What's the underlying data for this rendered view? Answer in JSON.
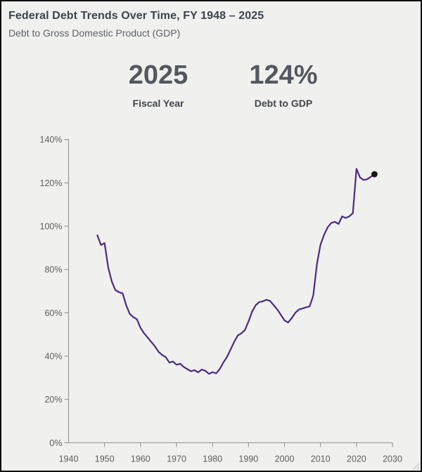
{
  "header": {
    "title": "Federal Debt Trends Over Time, FY 1948 – 2025",
    "subtitle": "Debt to Gross Domestic Product (GDP)"
  },
  "stats": [
    {
      "value": "2025",
      "label": "Fiscal Year"
    },
    {
      "value": "124%",
      "label": "Debt to GDP"
    }
  ],
  "chart_data": {
    "type": "line",
    "title": "Federal Debt Trends Over Time, FY 1948 – 2025",
    "subtitle": "Debt to Gross Domestic Product (GDP)",
    "xlabel": "",
    "ylabel": "",
    "xlim": [
      1940,
      2030
    ],
    "ylim": [
      0,
      140
    ],
    "grid": false,
    "legend_position": "none",
    "x_ticks": [
      1940,
      1950,
      1960,
      1970,
      1980,
      1990,
      2000,
      2010,
      2020,
      2030
    ],
    "y_ticks": [
      0,
      20,
      40,
      60,
      80,
      100,
      120,
      140
    ],
    "y_tick_suffix": "%",
    "series": [
      {
        "name": "Debt to GDP",
        "points": [
          [
            1948,
            95.8
          ],
          [
            1949,
            91.3
          ],
          [
            1950,
            92.2
          ],
          [
            1951,
            81.0
          ],
          [
            1952,
            74.5
          ],
          [
            1953,
            70.5
          ],
          [
            1954,
            69.5
          ],
          [
            1955,
            69.0
          ],
          [
            1956,
            63.5
          ],
          [
            1957,
            59.5
          ],
          [
            1958,
            58.0
          ],
          [
            1959,
            57.0
          ],
          [
            1960,
            53.0
          ],
          [
            1961,
            50.5
          ],
          [
            1962,
            48.5
          ],
          [
            1963,
            46.5
          ],
          [
            1964,
            44.5
          ],
          [
            1965,
            42.0
          ],
          [
            1966,
            40.5
          ],
          [
            1967,
            39.5
          ],
          [
            1968,
            37.0
          ],
          [
            1969,
            37.5
          ],
          [
            1970,
            36.0
          ],
          [
            1971,
            36.5
          ],
          [
            1972,
            35.0
          ],
          [
            1973,
            34.0
          ],
          [
            1974,
            33.0
          ],
          [
            1975,
            33.5
          ],
          [
            1976,
            32.5
          ],
          [
            1977,
            33.8
          ],
          [
            1978,
            33.2
          ],
          [
            1979,
            31.8
          ],
          [
            1980,
            32.6
          ],
          [
            1981,
            32.0
          ],
          [
            1982,
            34.0
          ],
          [
            1983,
            37.0
          ],
          [
            1984,
            39.5
          ],
          [
            1985,
            43.0
          ],
          [
            1986,
            46.5
          ],
          [
            1987,
            49.5
          ],
          [
            1988,
            50.5
          ],
          [
            1989,
            52.0
          ],
          [
            1990,
            56.0
          ],
          [
            1991,
            60.5
          ],
          [
            1992,
            63.5
          ],
          [
            1993,
            65.0
          ],
          [
            1994,
            65.3
          ],
          [
            1995,
            66.0
          ],
          [
            1996,
            65.5
          ],
          [
            1997,
            63.5
          ],
          [
            1998,
            61.5
          ],
          [
            1999,
            59.0
          ],
          [
            2000,
            56.5
          ],
          [
            2001,
            55.5
          ],
          [
            2002,
            57.5
          ],
          [
            2003,
            60.0
          ],
          [
            2004,
            61.5
          ],
          [
            2005,
            62.0
          ],
          [
            2006,
            62.5
          ],
          [
            2007,
            63.0
          ],
          [
            2008,
            68.0
          ],
          [
            2009,
            82.5
          ],
          [
            2010,
            91.5
          ],
          [
            2011,
            96.0
          ],
          [
            2012,
            99.5
          ],
          [
            2013,
            101.5
          ],
          [
            2014,
            102.0
          ],
          [
            2015,
            101.0
          ],
          [
            2016,
            104.5
          ],
          [
            2017,
            103.8
          ],
          [
            2018,
            104.5
          ],
          [
            2019,
            106.0
          ],
          [
            2020,
            126.5
          ],
          [
            2021,
            122.5
          ],
          [
            2022,
            121.3
          ],
          [
            2023,
            121.7
          ],
          [
            2024,
            122.8
          ],
          [
            2025,
            124.0
          ]
        ]
      }
    ],
    "end_marker": {
      "x": 2025,
      "y": 124,
      "color": "#161616"
    },
    "line_color": "#4b2a85",
    "axis_color": "#9a9a9a",
    "tick_label_color": "#5e5e5e"
  }
}
